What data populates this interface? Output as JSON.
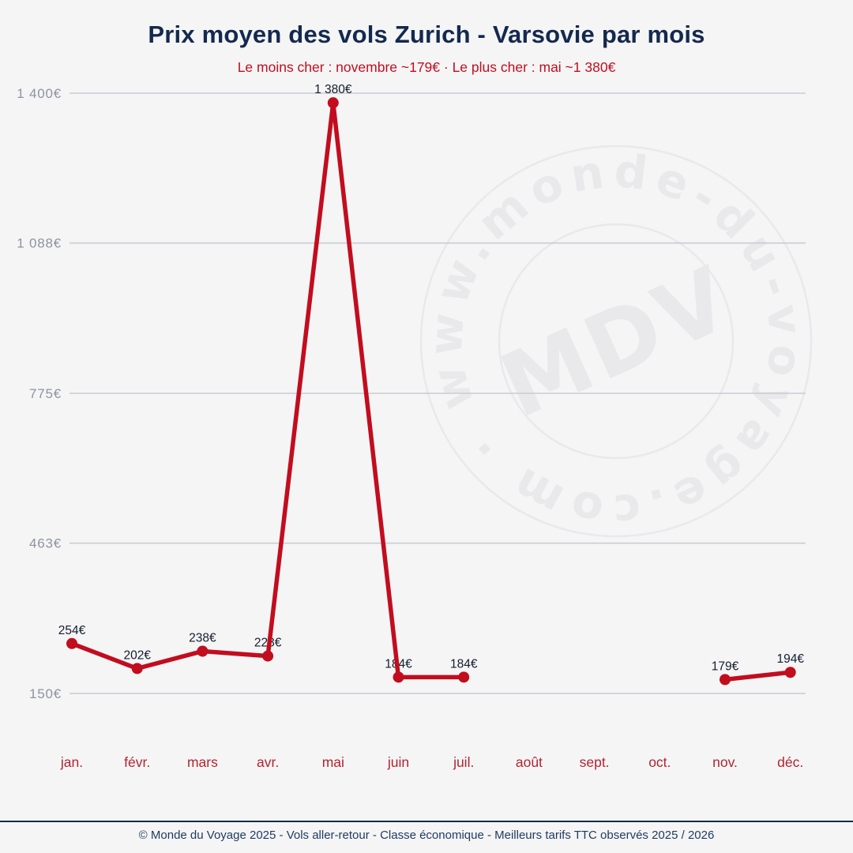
{
  "header": {
    "title": "Prix moyen des vols Zurich - Varsovie par mois",
    "subtitle": "Le moins cher : novembre ~179€ · Le plus cher : mai ~1 380€"
  },
  "watermark": {
    "circle_text": "www.monde-du-voyage.com ·",
    "center_text": "MDV"
  },
  "footer": {
    "text": "© Monde du Voyage 2025 - Vols aller-retour - Classe économique - Meilleurs tarifs TTC observés 2025 / 2026"
  },
  "colors": {
    "background": "#f5f5f6",
    "title": "#14294e",
    "subtitle": "#c30d1f",
    "line": "#c20d1e",
    "point": "#c20d1e",
    "data_label": "#131d2c",
    "y_tick": "#8d93a0",
    "x_tick": "#b2242f",
    "gridline": "#c9ccd2",
    "footer_text": "#1e3a5f",
    "footer_line": "#132a4c",
    "watermark": "#e9e9ec"
  },
  "chart_data": {
    "type": "line",
    "title": "Prix moyen des vols Zurich - Varsovie par mois",
    "xlabel": "",
    "ylabel": "",
    "categories": [
      "jan.",
      "févr.",
      "mars",
      "avr.",
      "mai",
      "juin",
      "juil.",
      "août",
      "sept.",
      "oct.",
      "nov.",
      "déc."
    ],
    "values": [
      254,
      202,
      238,
      228,
      1380,
      184,
      184,
      null,
      null,
      null,
      179,
      194
    ],
    "value_labels": [
      "254€",
      "202€",
      "238€",
      "228€",
      "1 380€",
      "184€",
      "184€",
      null,
      null,
      null,
      "179€",
      "194€"
    ],
    "y_ticks": [
      1400,
      1088,
      775,
      463,
      150
    ],
    "y_tick_labels": [
      "1 400€",
      "1 088€",
      "775€",
      "463€",
      "150€"
    ],
    "ylim": [
      150,
      1400
    ],
    "grid": true,
    "legend": false
  }
}
